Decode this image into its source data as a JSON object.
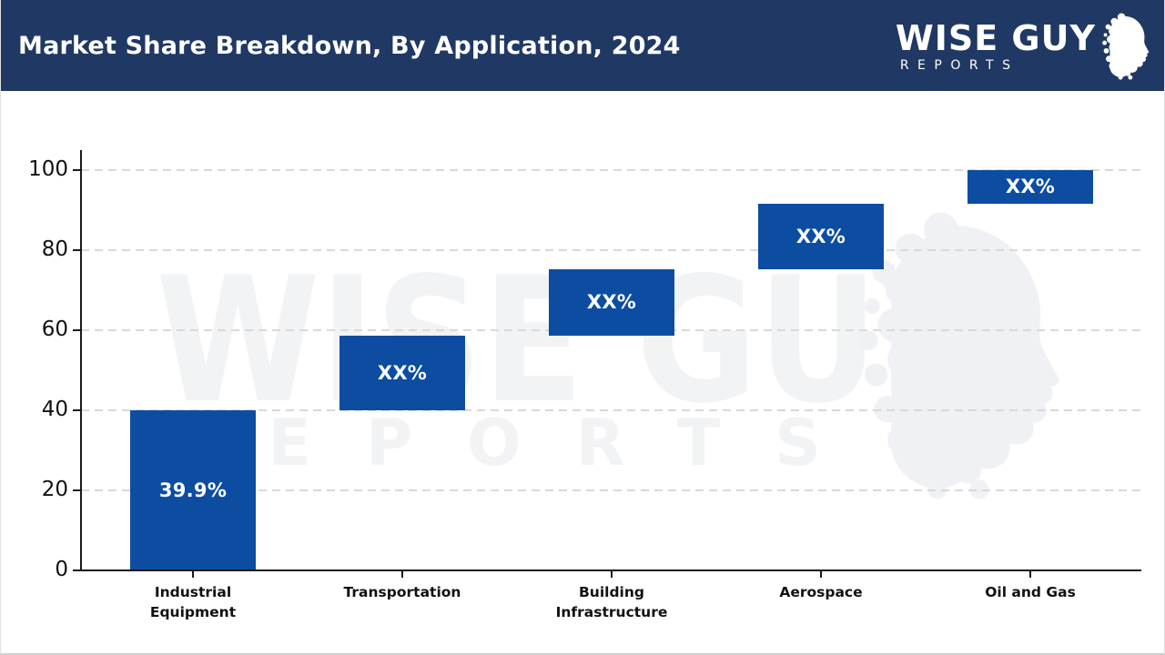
{
  "header": {
    "title": "Market Share Breakdown, By Application, 2024",
    "logo": {
      "name": "WISE GUY",
      "subtitle": "REPORTS"
    }
  },
  "watermark": {
    "line1": "WISE GUY",
    "line2": "REPORTS"
  },
  "chart_data": {
    "type": "bar",
    "subtype": "waterfall",
    "title": "Market Share Breakdown, By Application, 2024",
    "categories": [
      "Industrial Equipment",
      "Transportation",
      "Building Infrastructure",
      "Aerospace",
      "Oil and Gas"
    ],
    "category_label_lines": [
      [
        "Industrial",
        "Equipment"
      ],
      [
        "Transportation"
      ],
      [
        "Building",
        "Infrastructure"
      ],
      [
        "Aerospace"
      ],
      [
        "Oil and Gas"
      ]
    ],
    "segments": [
      {
        "start": 0,
        "end": 39.9,
        "label": "39.9%"
      },
      {
        "start": 40,
        "end": 58.7,
        "label": "XX%"
      },
      {
        "start": 58.7,
        "end": 75.2,
        "label": "XX%"
      },
      {
        "start": 75.2,
        "end": 91.6,
        "label": "XX%"
      },
      {
        "start": 91.6,
        "end": 100,
        "label": "XX%"
      }
    ],
    "yticks": [
      0,
      20,
      40,
      60,
      80,
      100
    ],
    "ylim": [
      0,
      100
    ],
    "xlabel": "",
    "ylabel": "",
    "grid": "dashed-horizontal",
    "legend": "none",
    "bar_color": "#0c4da2",
    "bar_label_color": "#ffffff"
  },
  "colors": {
    "header_bg": "#203864",
    "bar": "#0c4da2",
    "axis": "#1a1a1a",
    "gridline": "#d9d9d9",
    "watermark": "#f2f3f5",
    "text": "#111111"
  }
}
